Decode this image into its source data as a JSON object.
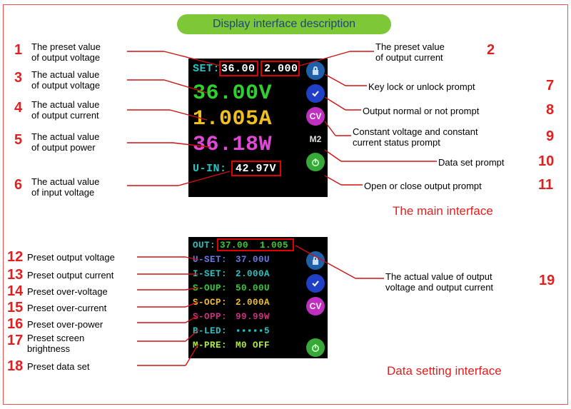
{
  "title": "Display interface description",
  "main_interface_label": "The main interface",
  "data_setting_label": "Data setting interface",
  "callouts_left_main": [
    {
      "n": "1",
      "text": "The preset value\nof output voltage"
    },
    {
      "n": "3",
      "text": "The actual value\nof output voltage"
    },
    {
      "n": "4",
      "text": "The actual value\nof output current"
    },
    {
      "n": "5",
      "text": "The actual value\nof output power"
    },
    {
      "n": "6",
      "text": "The actual value\nof input voltage"
    }
  ],
  "callouts_right_main": [
    {
      "n": "2",
      "text": "The preset value\nof output current"
    },
    {
      "n": "7",
      "text": "Key lock or unlock prompt"
    },
    {
      "n": "8",
      "text": "Output normal or not prompt"
    },
    {
      "n": "9",
      "text": "Constant voltage and constant\ncurrent status prompt"
    },
    {
      "n": "10",
      "text": "Data set prompt"
    },
    {
      "n": "11",
      "text": "Open or close output prompt"
    }
  ],
  "callouts_left_setting": [
    {
      "n": "12",
      "text": "Preset output voltage"
    },
    {
      "n": "13",
      "text": "Preset output current"
    },
    {
      "n": "14",
      "text": "Preset over-voltage"
    },
    {
      "n": "15",
      "text": "Preset over-current"
    },
    {
      "n": "16",
      "text": "Preset over-power"
    },
    {
      "n": "17",
      "text": "Preset screen\nbrightness"
    },
    {
      "n": "18",
      "text": "Preset data set"
    }
  ],
  "callouts_right_setting": [
    {
      "n": "19",
      "text": "The actual value of output\nvoltage and output current"
    }
  ],
  "lcd_main": {
    "set_label": "SET:",
    "set_v": "36.00",
    "set_a": "2.000",
    "v": "36.00V",
    "a": "1.005A",
    "w": "36.18W",
    "uin_label": "U-IN:",
    "uin": "42.97V",
    "colors": {
      "set": "#28c4c4",
      "set_v": "#ffffff",
      "set_a": "#ffffff",
      "v": "#30d030",
      "a": "#f0c020",
      "w": "#e048d8",
      "uin_label": "#28c4c4",
      "uin": "#ffffff"
    }
  },
  "lcd_setting": {
    "out_label": "OUT:",
    "out_v": "37.00",
    "out_a": "1.005",
    "rows": [
      {
        "k": "U-SET:",
        "v": "37.00U",
        "color": "#6878f0",
        "vcolor": "#6878f0"
      },
      {
        "k": "I-SET:",
        "v": "2.000A",
        "color": "#28c4c4",
        "vcolor": "#28c4c4"
      },
      {
        "k": "S-OUP:",
        "v": "50.00U",
        "color": "#30d030",
        "vcolor": "#30d030"
      },
      {
        "k": "S-OCP:",
        "v": "2.000A",
        "color": "#f0c020",
        "vcolor": "#f0c020"
      },
      {
        "k": "S-OPP:",
        "v": "99.99W",
        "color": "#d03080",
        "vcolor": "#d03080"
      },
      {
        "k": "B-LED:",
        "v": "▪▪▪▪▪5",
        "color": "#28c4c4",
        "vcolor": "#28c4c4"
      },
      {
        "k": "M-PRE:",
        "v": "M0 OFF",
        "color": "#b0f030",
        "vcolor": "#b0f030"
      }
    ],
    "out_color": "#28c4c4",
    "out_val_color": "#30d030"
  },
  "icons": {
    "lock_bg": "#2060a8",
    "check_bg": "#2040c8",
    "cv_bg": "#c030c0",
    "m2_bg": "#000000",
    "power_bg": "#38a838",
    "cv_text": "CV",
    "m2_text": "M2"
  }
}
